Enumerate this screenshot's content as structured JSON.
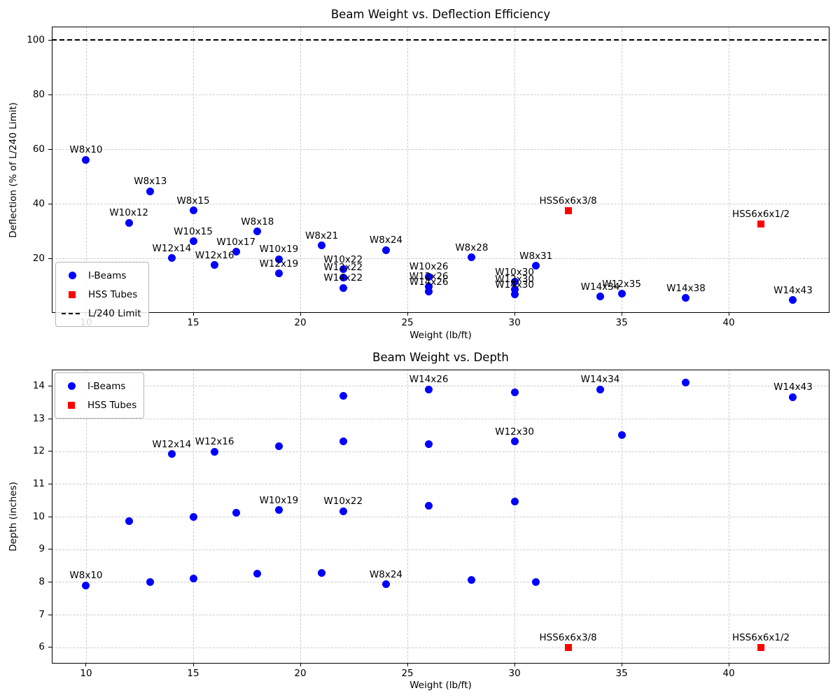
{
  "figure": {
    "background": "#ffffff"
  },
  "colors": {
    "ibeam": "#0000ff",
    "hss": "#ff0000",
    "limit_line": "#000000",
    "grid": "#cccccc"
  },
  "chart_data": [
    {
      "type": "scatter",
      "title": "Beam Weight vs. Deflection Efficiency",
      "xlabel": "Weight (lb/ft)",
      "ylabel": "Deflection (% of L/240 Limit)",
      "xlim": [
        8.4,
        44.7
      ],
      "ylim": [
        0,
        105
      ],
      "xticks": [
        10,
        15,
        20,
        25,
        30,
        35,
        40
      ],
      "yticks": [
        20,
        40,
        60,
        80,
        100
      ],
      "grid": true,
      "ref_line": {
        "y": 100,
        "label": "L/240 Limit",
        "style": "dashed",
        "color": "#000000"
      },
      "legend": {
        "position": "lower left",
        "entries": [
          {
            "label": "I-Beams",
            "marker": "circle",
            "color": "#0000ff"
          },
          {
            "label": "HSS Tubes",
            "marker": "square",
            "color": "#ff0000"
          },
          {
            "label": "L/240 Limit",
            "marker": "dashed-line",
            "color": "#000000"
          }
        ]
      },
      "series": [
        {
          "name": "I-Beams",
          "marker": "circle",
          "color": "#0000ff",
          "points": [
            {
              "label": "W8x10",
              "x": 10,
              "y": 56.2,
              "annotated": true
            },
            {
              "label": "W10x12",
              "x": 12,
              "y": 33.0,
              "annotated": true
            },
            {
              "label": "W8x13",
              "x": 13,
              "y": 44.6,
              "annotated": true
            },
            {
              "label": "W12x14",
              "x": 14,
              "y": 20.1,
              "annotated": true
            },
            {
              "label": "W8x15",
              "x": 15,
              "y": 37.6,
              "annotated": true
            },
            {
              "label": "W10x15",
              "x": 15,
              "y": 26.3,
              "annotated": true
            },
            {
              "label": "W12x16",
              "x": 16,
              "y": 17.5,
              "annotated": true
            },
            {
              "label": "W10x17",
              "x": 17,
              "y": 22.4,
              "annotated": true
            },
            {
              "label": "W8x18",
              "x": 18,
              "y": 29.8,
              "annotated": true
            },
            {
              "label": "W10x19",
              "x": 19,
              "y": 19.7,
              "annotated": true
            },
            {
              "label": "W12x19",
              "x": 19,
              "y": 14.4,
              "annotated": true
            },
            {
              "label": "W8x21",
              "x": 21,
              "y": 24.7,
              "annotated": true
            },
            {
              "label": "W10x22",
              "x": 22,
              "y": 16.0,
              "annotated": true
            },
            {
              "label": "W12x22",
              "x": 22,
              "y": 13.0,
              "annotated": true
            },
            {
              "label": "W14x22",
              "x": 22,
              "y": 9.2,
              "annotated": true
            },
            {
              "label": "W8x24",
              "x": 24,
              "y": 23.0,
              "annotated": true
            },
            {
              "label": "W10x26",
              "x": 26,
              "y": 13.3,
              "annotated": true
            },
            {
              "label": "W12x26",
              "x": 26,
              "y": 9.7,
              "annotated": true
            },
            {
              "label": "W14x26",
              "x": 26,
              "y": 7.8,
              "annotated": true
            },
            {
              "label": "W8x28",
              "x": 28,
              "y": 20.3,
              "annotated": true
            },
            {
              "label": "W10x30",
              "x": 30,
              "y": 11.3,
              "annotated": true
            },
            {
              "label": "W12x30",
              "x": 30,
              "y": 8.7,
              "annotated": true
            },
            {
              "label": "W14x30",
              "x": 30,
              "y": 6.8,
              "annotated": true
            },
            {
              "label": "W8x31",
              "x": 31,
              "y": 17.3,
              "annotated": true
            },
            {
              "label": "W14x34",
              "x": 34,
              "y": 6.0,
              "annotated": true
            },
            {
              "label": "W12x35",
              "x": 35,
              "y": 7.0,
              "annotated": true
            },
            {
              "label": "W14x38",
              "x": 38,
              "y": 5.5,
              "annotated": true
            },
            {
              "label": "W14x43",
              "x": 43,
              "y": 4.7,
              "annotated": true
            }
          ]
        },
        {
          "name": "HSS Tubes",
          "marker": "square",
          "color": "#ff0000",
          "points": [
            {
              "label": "HSS6x6x3/8",
              "x": 32.5,
              "y": 37.4,
              "annotated": true
            },
            {
              "label": "HSS6x6x1/2",
              "x": 41.5,
              "y": 32.7,
              "annotated": true
            }
          ]
        }
      ]
    },
    {
      "type": "scatter",
      "title": "Beam Weight vs. Depth",
      "xlabel": "Weight (lb/ft)",
      "ylabel": "Depth (inches)",
      "xlim": [
        8.4,
        44.7
      ],
      "ylim": [
        5.5,
        14.5
      ],
      "xticks": [
        10,
        15,
        20,
        25,
        30,
        35,
        40
      ],
      "yticks": [
        6,
        7,
        8,
        9,
        10,
        11,
        12,
        13,
        14
      ],
      "grid": true,
      "legend": {
        "position": "upper left",
        "entries": [
          {
            "label": "I-Beams",
            "marker": "circle",
            "color": "#0000ff"
          },
          {
            "label": "HSS Tubes",
            "marker": "square",
            "color": "#ff0000"
          }
        ]
      },
      "series": [
        {
          "name": "I-Beams",
          "marker": "circle",
          "color": "#0000ff",
          "points": [
            {
              "label": "W8x10",
              "x": 10,
              "y": 7.89,
              "annotated": true
            },
            {
              "label": "W10x12",
              "x": 12,
              "y": 9.87,
              "annotated": false
            },
            {
              "label": "W8x13",
              "x": 13,
              "y": 7.99,
              "annotated": false
            },
            {
              "label": "W12x14",
              "x": 14,
              "y": 11.91,
              "annotated": true
            },
            {
              "label": "W8x15",
              "x": 15,
              "y": 8.11,
              "annotated": false
            },
            {
              "label": "W10x15",
              "x": 15,
              "y": 9.99,
              "annotated": false
            },
            {
              "label": "W12x16",
              "x": 16,
              "y": 11.99,
              "annotated": true
            },
            {
              "label": "W10x17",
              "x": 17,
              "y": 10.11,
              "annotated": false
            },
            {
              "label": "W8x18",
              "x": 18,
              "y": 8.26,
              "annotated": false
            },
            {
              "label": "W10x19",
              "x": 19,
              "y": 10.2,
              "annotated": true
            },
            {
              "label": "W12x19",
              "x": 19,
              "y": 12.16,
              "annotated": false
            },
            {
              "label": "W8x21",
              "x": 21,
              "y": 8.28,
              "annotated": false
            },
            {
              "label": "W10x22",
              "x": 22,
              "y": 10.17,
              "annotated": true
            },
            {
              "label": "W12x22",
              "x": 22,
              "y": 12.31,
              "annotated": false
            },
            {
              "label": "W14x22",
              "x": 22,
              "y": 13.7,
              "annotated": false
            },
            {
              "label": "W8x24",
              "x": 24,
              "y": 7.93,
              "annotated": true
            },
            {
              "label": "W10x26",
              "x": 26,
              "y": 10.33,
              "annotated": false
            },
            {
              "label": "W12x26",
              "x": 26,
              "y": 12.22,
              "annotated": false
            },
            {
              "label": "W14x26",
              "x": 26,
              "y": 13.89,
              "annotated": true
            },
            {
              "label": "W8x28",
              "x": 28,
              "y": 8.06,
              "annotated": false
            },
            {
              "label": "W10x30",
              "x": 30,
              "y": 10.47,
              "annotated": false
            },
            {
              "label": "W12x30",
              "x": 30,
              "y": 12.3,
              "annotated": true
            },
            {
              "label": "W14x30",
              "x": 30,
              "y": 13.8,
              "annotated": false
            },
            {
              "label": "W8x31",
              "x": 31,
              "y": 8.0,
              "annotated": false
            },
            {
              "label": "W14x34",
              "x": 34,
              "y": 13.9,
              "annotated": true
            },
            {
              "label": "W12x35",
              "x": 35,
              "y": 12.5,
              "annotated": false
            },
            {
              "label": "W14x38",
              "x": 38,
              "y": 14.1,
              "annotated": false
            },
            {
              "label": "W14x43",
              "x": 43,
              "y": 13.66,
              "annotated": true
            }
          ]
        },
        {
          "name": "HSS Tubes",
          "marker": "square",
          "color": "#ff0000",
          "points": [
            {
              "label": "HSS6x6x3/8",
              "x": 32.5,
              "y": 6.0,
              "annotated": true
            },
            {
              "label": "HSS6x6x1/2",
              "x": 41.5,
              "y": 6.0,
              "annotated": true
            }
          ]
        }
      ]
    }
  ]
}
